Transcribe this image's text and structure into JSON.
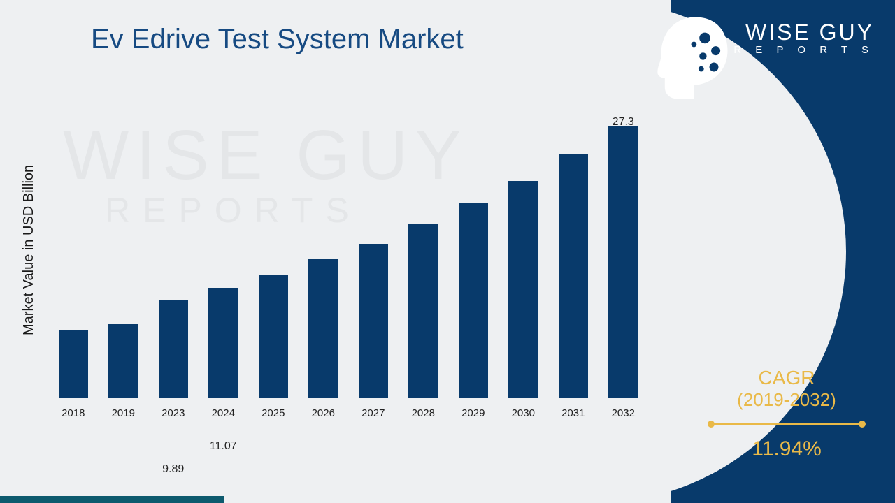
{
  "title": "Ev Edrive Test System Market",
  "ylabel": "Market Value in USD Billion",
  "brand": {
    "top": "WISE GUY",
    "sub": "R E P O R T S"
  },
  "watermark": {
    "top": "WISE GUY",
    "sub": "REPORTS"
  },
  "cagr": {
    "label": "CAGR",
    "range": "(2019-2032)",
    "value": "11.94%"
  },
  "chart": {
    "type": "bar",
    "bar_color": "#083a6b",
    "background_color": "#eef0f2",
    "panel_color": "#083a6b",
    "accent_color": "#e9b948",
    "title_color": "#164a82",
    "title_fontsize": 40,
    "ylabel_fontsize": 20,
    "xlabel_fontsize": 15,
    "value_label_fontsize": 16,
    "ylim": [
      0,
      28
    ],
    "bar_width_ratio": 0.78,
    "categories": [
      "2018",
      "2019",
      "2023",
      "2024",
      "2025",
      "2026",
      "2027",
      "2028",
      "2029",
      "2030",
      "2031",
      "2032"
    ],
    "values": [
      6.8,
      7.4,
      9.89,
      11.07,
      12.4,
      13.9,
      15.5,
      17.4,
      19.5,
      21.8,
      24.4,
      27.3
    ],
    "show_value_label": [
      false,
      false,
      true,
      true,
      false,
      false,
      false,
      false,
      false,
      false,
      false,
      true
    ]
  }
}
